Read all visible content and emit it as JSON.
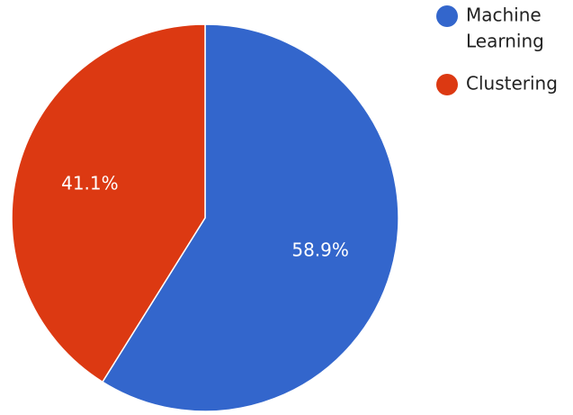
{
  "chart_data": {
    "type": "pie",
    "title": "",
    "legend_position": "top-right",
    "series": [
      {
        "name": "",
        "values": [
          58.9,
          41.1
        ]
      }
    ],
    "categories": [
      "Machine Learning",
      "Clustering"
    ],
    "labels": [
      "58.9%",
      "41.1%"
    ],
    "legend": [
      {
        "lines": [
          "Machine",
          "Learning"
        ]
      },
      {
        "lines": [
          "Clustering"
        ]
      }
    ],
    "colors": [
      "#3366cc",
      "#dc3912"
    ]
  }
}
